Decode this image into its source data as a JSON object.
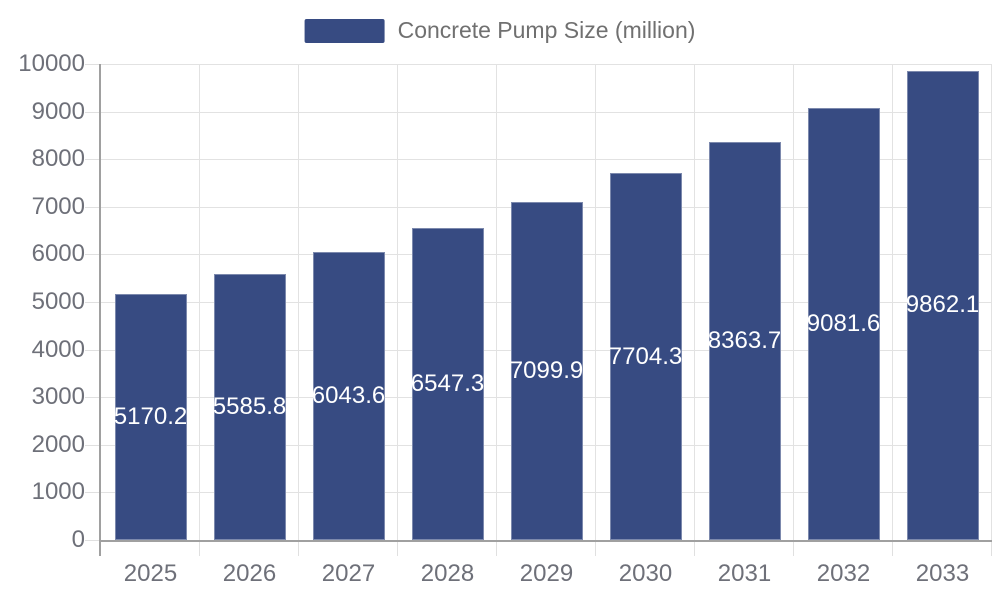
{
  "chart_data": {
    "type": "bar",
    "title": "",
    "legend": {
      "label": "Concrete Pump Size (million)",
      "position": "top-center"
    },
    "categories": [
      "2025",
      "2026",
      "2027",
      "2028",
      "2029",
      "2030",
      "2031",
      "2032",
      "2033"
    ],
    "series": [
      {
        "name": "Concrete Pump Size (million)",
        "values": [
          5170.2,
          5585.8,
          6043.6,
          6547.3,
          7099.9,
          7704.3,
          8363.7,
          9081.6,
          9862.1
        ]
      }
    ],
    "value_labels": [
      "5170.2",
      "5585.8",
      "6043.6",
      "6547.3",
      "7099.9",
      "7704.3",
      "8363.7",
      "9081.6",
      "9862.1"
    ],
    "xlabel": "",
    "ylabel": "",
    "ylim": [
      0,
      10000
    ],
    "y_step": 1000,
    "y_tick_labels": [
      "0",
      "1000",
      "2000",
      "3000",
      "4000",
      "5000",
      "6000",
      "7000",
      "8000",
      "9000",
      "10000"
    ],
    "grid": true,
    "colors": {
      "bar": "#374b82",
      "axis_line": "#a0a0a0",
      "gridline": "#e2e2e2",
      "tick_mark": "#e0e0e0",
      "tick_text": "#6e7079",
      "legend_text": "#707070",
      "value_label_text": "#ffffff",
      "background": "#ffffff"
    }
  }
}
